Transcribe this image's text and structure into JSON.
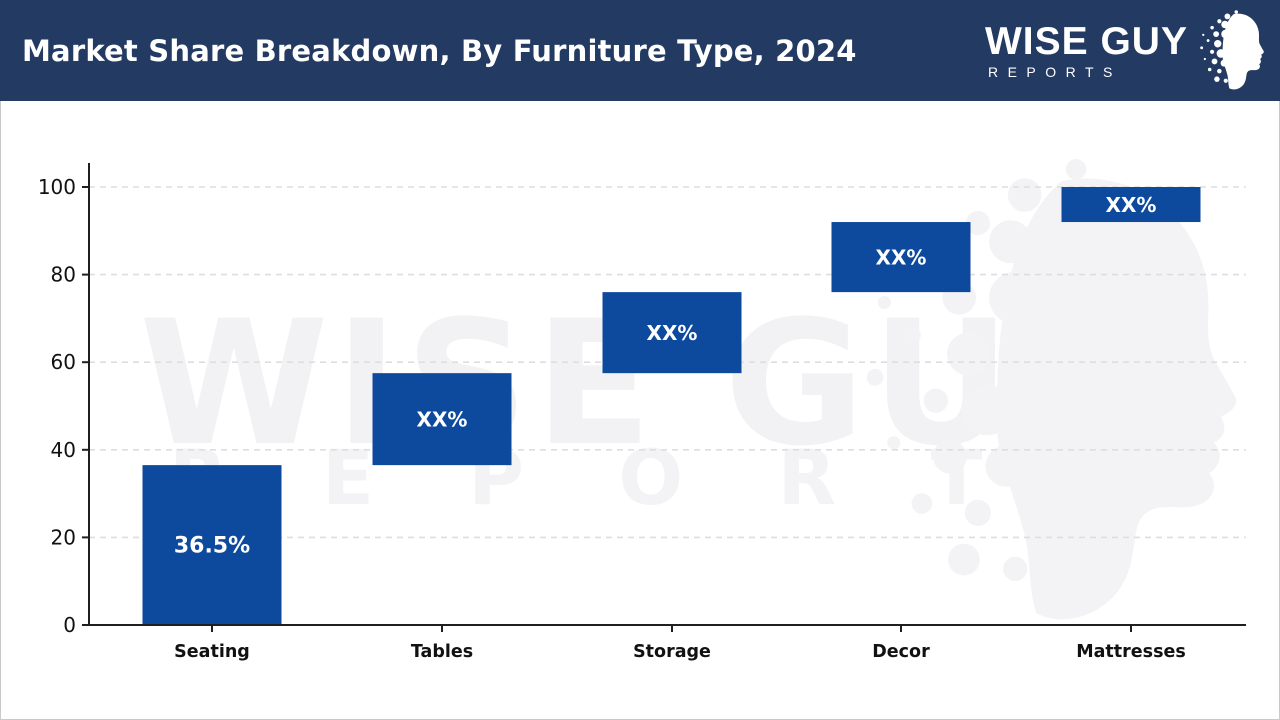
{
  "header": {
    "title": "Market Share Breakdown, By Furniture Type, 2024",
    "bg_color": "#233a63",
    "logo": {
      "primary": "WISE GUY",
      "secondary": "REPORTS"
    }
  },
  "watermark": {
    "primary": "WISE GUY",
    "secondary": "R E P O R T S"
  },
  "chart_data": {
    "type": "bar",
    "subtype": "waterfall",
    "title": "Market Share Breakdown, By Furniture Type, 2024",
    "categories": [
      "Seating",
      "Tables",
      "Storage",
      "Decor",
      "Mattresses"
    ],
    "segments": [
      {
        "category": "Seating",
        "start": 0,
        "end": 36.5,
        "label": "36.5%"
      },
      {
        "category": "Tables",
        "start": 36.5,
        "end": 57.5,
        "label": "XX%"
      },
      {
        "category": "Storage",
        "start": 57.5,
        "end": 76,
        "label": "XX%"
      },
      {
        "category": "Decor",
        "start": 76,
        "end": 92,
        "label": "XX%"
      },
      {
        "category": "Mattresses",
        "start": 92,
        "end": 100,
        "label": "XX%"
      }
    ],
    "yticks": [
      0,
      20,
      40,
      60,
      80,
      100
    ],
    "ylim": [
      0,
      105
    ],
    "xlabel": "",
    "ylabel": "",
    "grid": "horizontal-dashed",
    "legend": "none",
    "colors": {
      "bar": "#0d4a9e",
      "bar_label": "#ffffff",
      "axis": "#1f1f1f",
      "tick_label": "#111111",
      "grid": "#dedede"
    }
  }
}
